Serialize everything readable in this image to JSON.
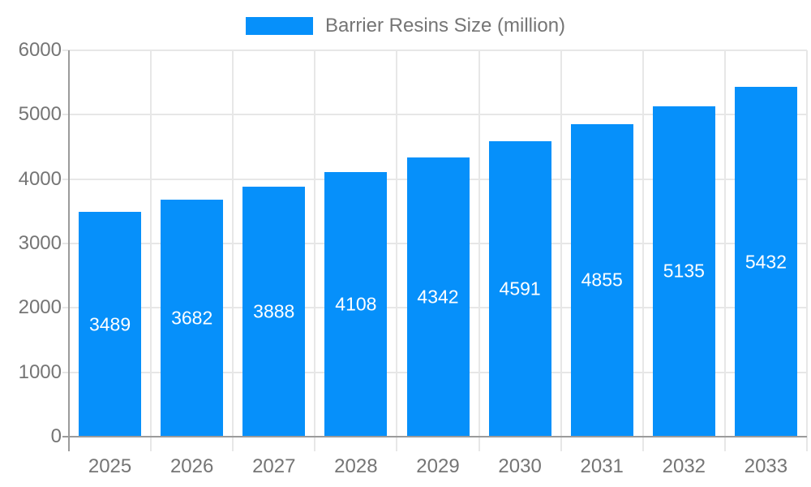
{
  "legend": {
    "label": "Barrier Resins Size (million)"
  },
  "chart_data": {
    "type": "bar",
    "title": "Barrier Resins Size (million)",
    "categories": [
      "2025",
      "2026",
      "2027",
      "2028",
      "2029",
      "2030",
      "2031",
      "2032",
      "2033"
    ],
    "values": [
      3489,
      3682,
      3888,
      4108,
      4342,
      4591,
      4855,
      5135,
      5432
    ],
    "series_name": "Barrier Resins Size (million)",
    "xlabel": "",
    "ylabel": "",
    "ylim": [
      0,
      6000
    ],
    "yticks": [
      0,
      1000,
      2000,
      3000,
      4000,
      5000,
      6000
    ],
    "grid": true,
    "legend_position": "top",
    "value_label_position": "inside-center",
    "colors": {
      "bar": "#0690fa",
      "grid": "#e7e7e7",
      "axis": "#9b9b9b",
      "tick_text": "#757575",
      "value_label": "#ffffff"
    }
  }
}
